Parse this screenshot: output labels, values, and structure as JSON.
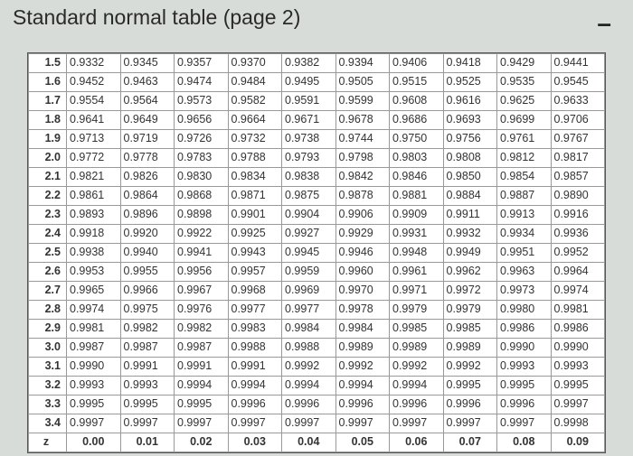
{
  "title": "Standard normal table (page 2)",
  "columns": [
    "0.00",
    "0.01",
    "0.02",
    "0.03",
    "0.04",
    "0.05",
    "0.06",
    "0.07",
    "0.08",
    "0.09"
  ],
  "z_label": "z",
  "rows": [
    {
      "z": "1.5",
      "v": [
        "0.9332",
        "0.9345",
        "0.9357",
        "0.9370",
        "0.9382",
        "0.9394",
        "0.9406",
        "0.9418",
        "0.9429",
        "0.9441"
      ]
    },
    {
      "z": "1.6",
      "v": [
        "0.9452",
        "0.9463",
        "0.9474",
        "0.9484",
        "0.9495",
        "0.9505",
        "0.9515",
        "0.9525",
        "0.9535",
        "0.9545"
      ]
    },
    {
      "z": "1.7",
      "v": [
        "0.9554",
        "0.9564",
        "0.9573",
        "0.9582",
        "0.9591",
        "0.9599",
        "0.9608",
        "0.9616",
        "0.9625",
        "0.9633"
      ]
    },
    {
      "z": "1.8",
      "v": [
        "0.9641",
        "0.9649",
        "0.9656",
        "0.9664",
        "0.9671",
        "0.9678",
        "0.9686",
        "0.9693",
        "0.9699",
        "0.9706"
      ]
    },
    {
      "z": "1.9",
      "v": [
        "0.9713",
        "0.9719",
        "0.9726",
        "0.9732",
        "0.9738",
        "0.9744",
        "0.9750",
        "0.9756",
        "0.9761",
        "0.9767"
      ]
    },
    {
      "z": "2.0",
      "v": [
        "0.9772",
        "0.9778",
        "0.9783",
        "0.9788",
        "0.9793",
        "0.9798",
        "0.9803",
        "0.9808",
        "0.9812",
        "0.9817"
      ]
    },
    {
      "z": "2.1",
      "v": [
        "0.9821",
        "0.9826",
        "0.9830",
        "0.9834",
        "0.9838",
        "0.9842",
        "0.9846",
        "0.9850",
        "0.9854",
        "0.9857"
      ]
    },
    {
      "z": "2.2",
      "v": [
        "0.9861",
        "0.9864",
        "0.9868",
        "0.9871",
        "0.9875",
        "0.9878",
        "0.9881",
        "0.9884",
        "0.9887",
        "0.9890"
      ]
    },
    {
      "z": "2.3",
      "v": [
        "0.9893",
        "0.9896",
        "0.9898",
        "0.9901",
        "0.9904",
        "0.9906",
        "0.9909",
        "0.9911",
        "0.9913",
        "0.9916"
      ]
    },
    {
      "z": "2.4",
      "v": [
        "0.9918",
        "0.9920",
        "0.9922",
        "0.9925",
        "0.9927",
        "0.9929",
        "0.9931",
        "0.9932",
        "0.9934",
        "0.9936"
      ]
    },
    {
      "z": "2.5",
      "v": [
        "0.9938",
        "0.9940",
        "0.9941",
        "0.9943",
        "0.9945",
        "0.9946",
        "0.9948",
        "0.9949",
        "0.9951",
        "0.9952"
      ]
    },
    {
      "z": "2.6",
      "v": [
        "0.9953",
        "0.9955",
        "0.9956",
        "0.9957",
        "0.9959",
        "0.9960",
        "0.9961",
        "0.9962",
        "0.9963",
        "0.9964"
      ]
    },
    {
      "z": "2.7",
      "v": [
        "0.9965",
        "0.9966",
        "0.9967",
        "0.9968",
        "0.9969",
        "0.9970",
        "0.9971",
        "0.9972",
        "0.9973",
        "0.9974"
      ]
    },
    {
      "z": "2.8",
      "v": [
        "0.9974",
        "0.9975",
        "0.9976",
        "0.9977",
        "0.9977",
        "0.9978",
        "0.9979",
        "0.9979",
        "0.9980",
        "0.9981"
      ]
    },
    {
      "z": "2.9",
      "v": [
        "0.9981",
        "0.9982",
        "0.9982",
        "0.9983",
        "0.9984",
        "0.9984",
        "0.9985",
        "0.9985",
        "0.9986",
        "0.9986"
      ]
    },
    {
      "z": "3.0",
      "v": [
        "0.9987",
        "0.9987",
        "0.9987",
        "0.9988",
        "0.9988",
        "0.9989",
        "0.9989",
        "0.9989",
        "0.9990",
        "0.9990"
      ]
    },
    {
      "z": "3.1",
      "v": [
        "0.9990",
        "0.9991",
        "0.9991",
        "0.9991",
        "0.9992",
        "0.9992",
        "0.9992",
        "0.9992",
        "0.9993",
        "0.9993"
      ]
    },
    {
      "z": "3.2",
      "v": [
        "0.9993",
        "0.9993",
        "0.9994",
        "0.9994",
        "0.9994",
        "0.9994",
        "0.9994",
        "0.9995",
        "0.9995",
        "0.9995"
      ]
    },
    {
      "z": "3.3",
      "v": [
        "0.9995",
        "0.9995",
        "0.9995",
        "0.9996",
        "0.9996",
        "0.9996",
        "0.9996",
        "0.9996",
        "0.9996",
        "0.9997"
      ]
    },
    {
      "z": "3.4",
      "v": [
        "0.9997",
        "0.9997",
        "0.9997",
        "0.9997",
        "0.9997",
        "0.9997",
        "0.9997",
        "0.9997",
        "0.9997",
        "0.9998"
      ]
    }
  ],
  "style": {
    "background_color": "#d8dcd8",
    "table_bg": "#ffffff",
    "border_color": "#999999",
    "outer_border": "#555555",
    "text_color": "#333333",
    "title_color": "#2a2a2a",
    "title_fontsize": 23,
    "cell_fontsize": 12.5,
    "header_fontweight": "700"
  }
}
